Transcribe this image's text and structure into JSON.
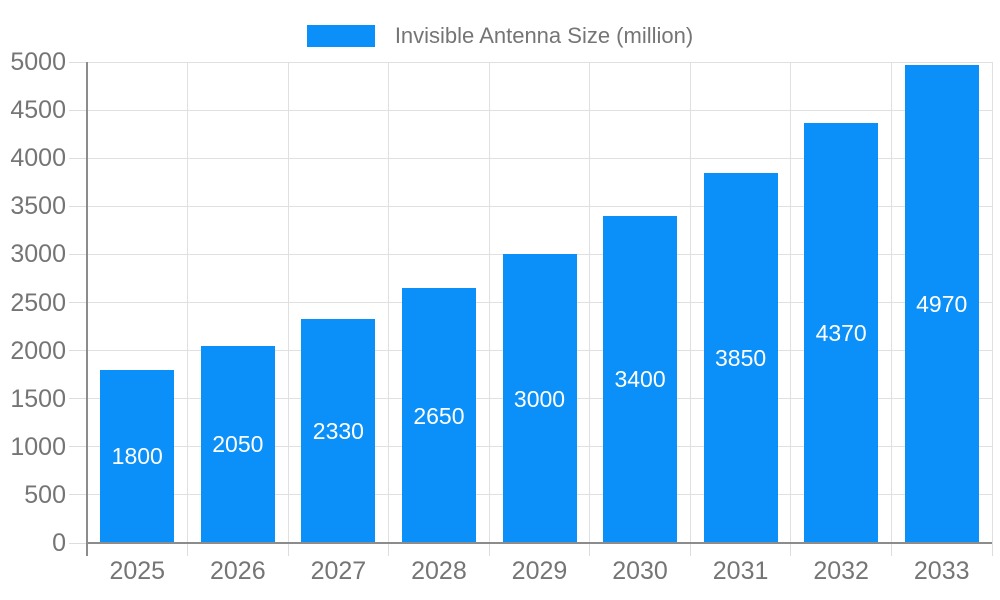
{
  "chart_data": {
    "type": "bar",
    "title": "Invisible Antenna Size (million)",
    "legend": {
      "label": "Invisible Antenna Size (million)",
      "position": "top-center"
    },
    "categories": [
      "2025",
      "2026",
      "2027",
      "2028",
      "2029",
      "2030",
      "2031",
      "2032",
      "2033"
    ],
    "series": [
      {
        "name": "Invisible Antenna Size (million)",
        "values": [
          1800,
          2050,
          2330,
          2650,
          3000,
          3400,
          3850,
          4370,
          4970
        ]
      }
    ],
    "xlabel": "",
    "ylabel": "",
    "ylim": [
      0,
      5000
    ],
    "y_tick_step": 500,
    "y_tick_labels": [
      "0",
      "500",
      "1000",
      "1500",
      "2000",
      "2500",
      "3000",
      "3500",
      "4000",
      "4500",
      "5000"
    ],
    "grid": true,
    "data_labels": {
      "show": true,
      "position": "center"
    },
    "colors": {
      "bar": "#0a90f8",
      "bar_label_text": "#ffffff",
      "axis_line": "#8c8c8c",
      "gridline": "#e0e0e0",
      "tick": "#dddddd",
      "axis_text": "#757575",
      "legend_text": "#757575",
      "background": "#ffffff"
    }
  }
}
